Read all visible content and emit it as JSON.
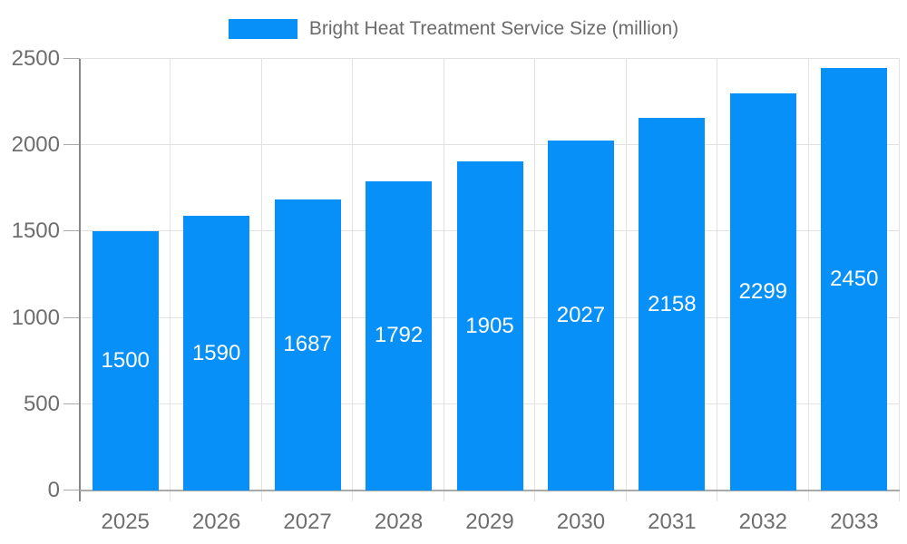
{
  "colors": {
    "bar": "#0890f9",
    "grid": "#e2e2e2",
    "axis_x": "#aaaaaa",
    "axis_y": "#888888",
    "tick": "#aaaaaa",
    "tick_label": "#6e6e6e",
    "legend_text": "#6b6b6b",
    "value_label": "#ffffff",
    "background": "#ffffff"
  },
  "legend": {
    "label": "Bright Heat Treatment Service Size (million)"
  },
  "chart_data": {
    "type": "bar",
    "title": "Bright Heat Treatment Service Size (million)",
    "categories": [
      "2025",
      "2026",
      "2027",
      "2028",
      "2029",
      "2030",
      "2031",
      "2032",
      "2033"
    ],
    "values": [
      1500,
      1590,
      1687,
      1792,
      1905,
      2027,
      2158,
      2299,
      2450
    ],
    "xlabel": "",
    "ylabel": "",
    "ylim": [
      0,
      2500
    ],
    "yticks": [
      0,
      500,
      1000,
      1500,
      2000,
      2500
    ],
    "grid": true,
    "legend_position": "top-center",
    "value_labels": "inside-center"
  }
}
